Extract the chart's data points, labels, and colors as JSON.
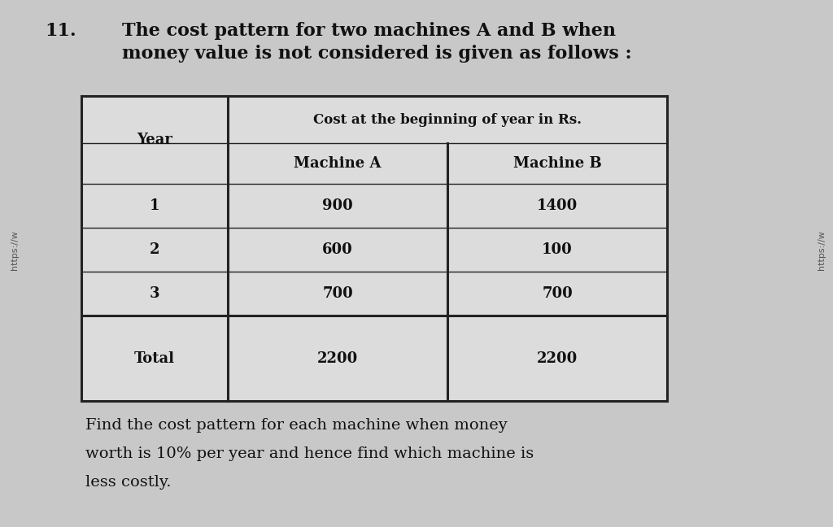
{
  "title_number": "11.",
  "title_line1": "The cost pattern for two machines A and B when",
  "title_line2": "money value is not considered is given as follows :",
  "footer_line1": "Find the cost pattern for each machine when money",
  "footer_line2": "worth is 10% per year and hence find which machine is",
  "footer_line3": "less costly.",
  "col_header_year": "Year",
  "col_header_cost": "Cost at the beginning of year in Rs.",
  "col_header_machA": "Machine A",
  "col_header_machB": "Machine B",
  "rows": [
    [
      "1",
      "900",
      "1400"
    ],
    [
      "2",
      "600",
      "100"
    ],
    [
      "3",
      "700",
      "700"
    ],
    [
      "Total",
      "2200",
      "2200"
    ]
  ],
  "bg_color": "#c8c8c8",
  "table_bg": "#dcdcdc",
  "text_color": "#111111",
  "border_color": "#222222",
  "watermark_left": "https://w",
  "watermark_right": "https://w",
  "title_fontsize": 16,
  "header_fontsize": 12,
  "data_fontsize": 13,
  "footer_fontsize": 14
}
